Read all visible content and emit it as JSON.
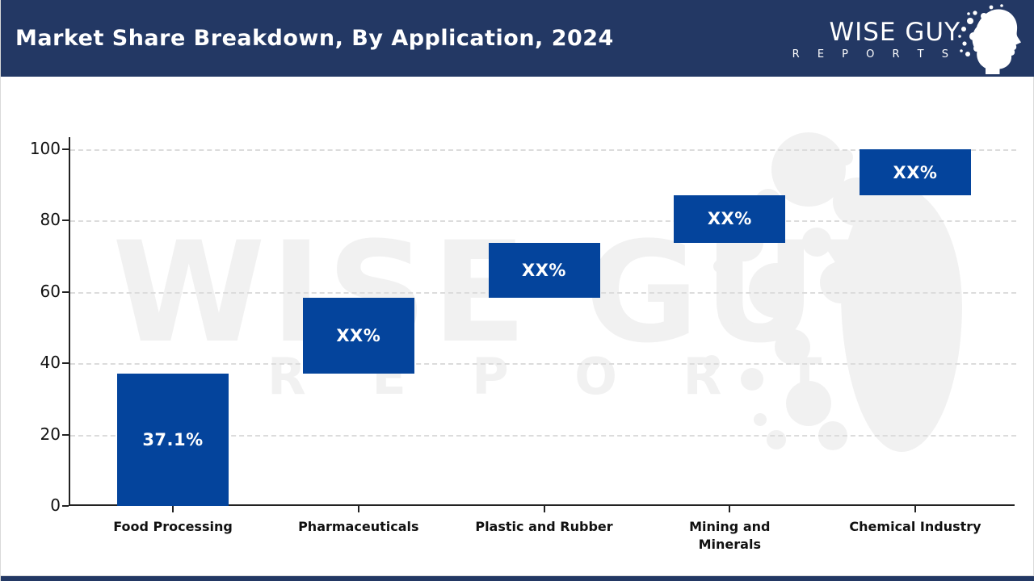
{
  "header": {
    "title": "Market Share Breakdown, By Application, 2024",
    "logo": {
      "line1": "WISE GUY",
      "line2": "R E P O R T S"
    }
  },
  "watermark": {
    "line1": "WISE GUY",
    "line2": "R E P O R T S"
  },
  "chart_data": {
    "type": "bar",
    "subtype": "waterfall-stacked",
    "title": "Market Share Breakdown, By Application, 2024",
    "categories": [
      "Food Processing",
      "Pharmaceuticals",
      "Plastic and Rubber",
      "Mining and\nMinerals",
      "Chemical Industry"
    ],
    "segments": [
      {
        "category": "Food Processing",
        "start": 0,
        "end": 37.1,
        "label": "37.1%"
      },
      {
        "category": "Pharmaceuticals",
        "start": 37.1,
        "end": 58.4,
        "label": "XX%"
      },
      {
        "category": "Plastic and Rubber",
        "start": 58.4,
        "end": 73.8,
        "label": "XX%"
      },
      {
        "category": "Mining and Minerals",
        "start": 73.8,
        "end": 87.1,
        "label": "XX%"
      },
      {
        "category": "Chemical Industry",
        "start": 87.1,
        "end": 100,
        "label": "XX%"
      }
    ],
    "y_ticks": [
      0,
      20,
      40,
      60,
      80,
      100
    ],
    "ylim": [
      0,
      103.5
    ],
    "xlabel": "",
    "ylabel": "",
    "grid": "horizontal-dashed",
    "legend": "none",
    "bar_color": "#04449c",
    "value_label_color": "#ffffff"
  },
  "colors": {
    "header_bg": "#233864",
    "bar": "#04449c",
    "grid": "#dcdcdc",
    "axis": "#222222",
    "watermark": "#f1f1f1"
  }
}
